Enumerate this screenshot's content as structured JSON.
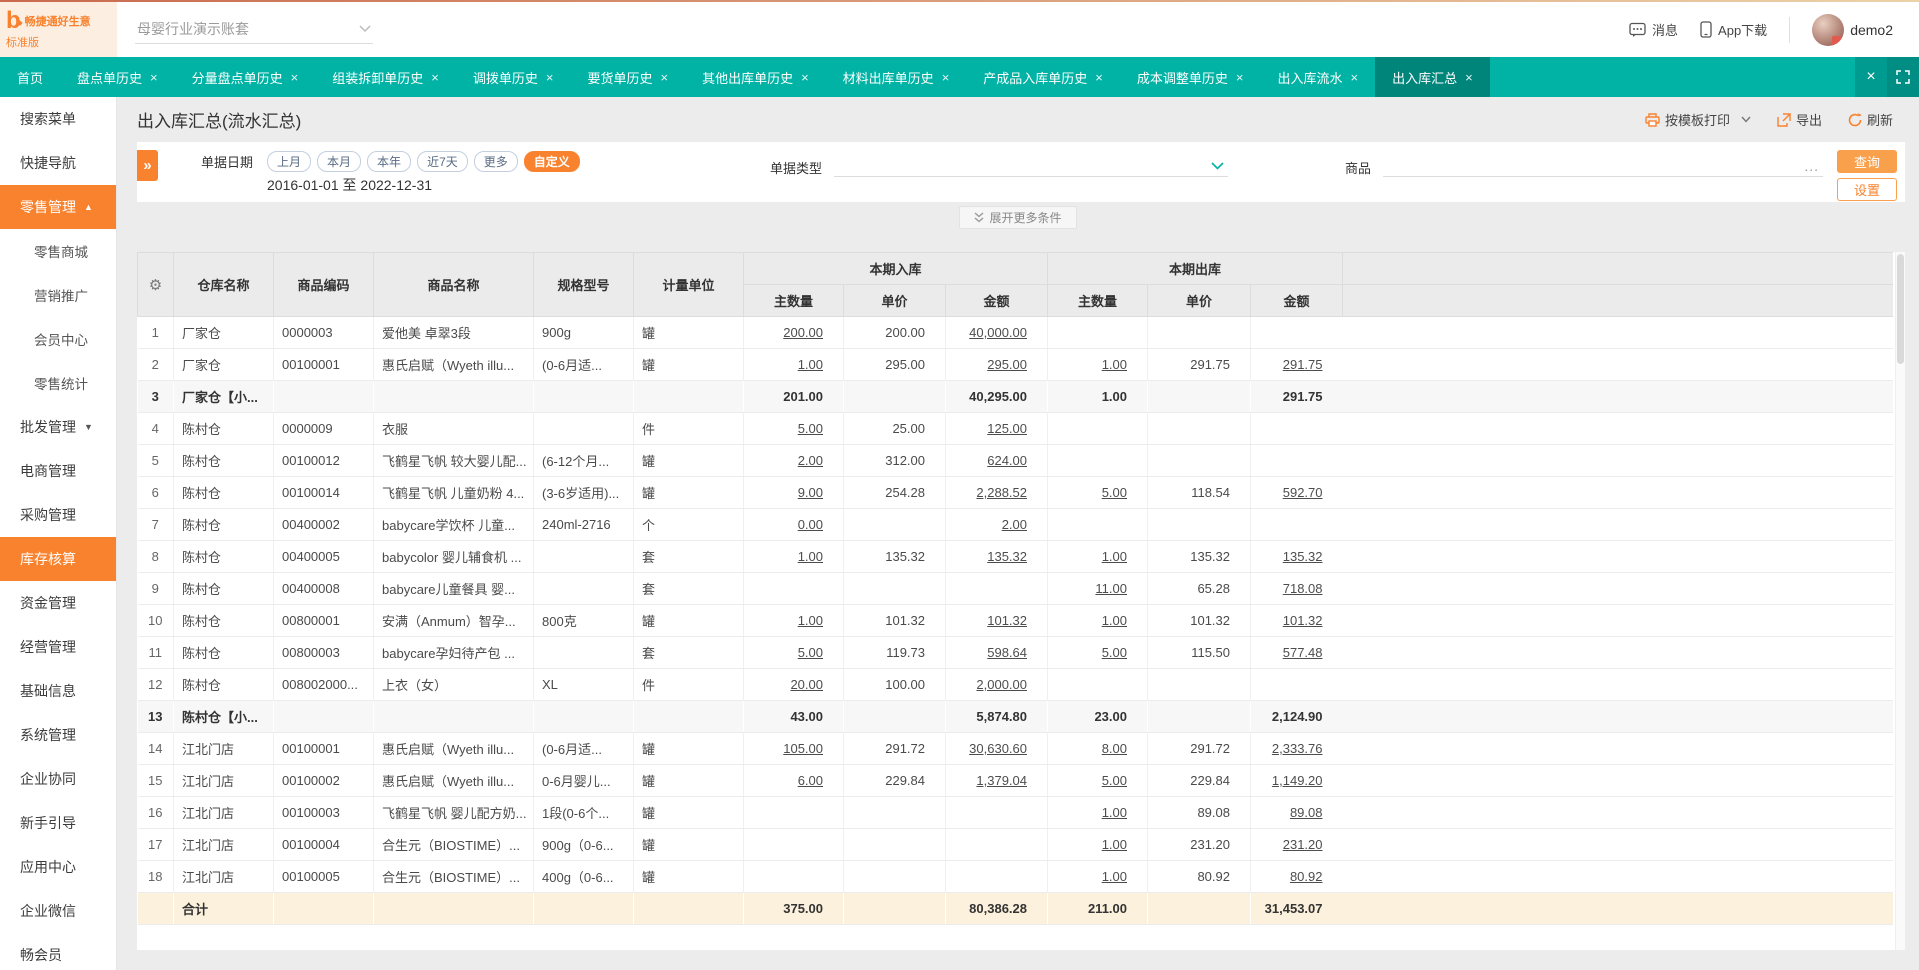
{
  "theme": {
    "teal": "#00b3a4",
    "teal_dark": "#00857b",
    "orange": "#f9822e",
    "total_row_bg": "#fcf1dc"
  },
  "header": {
    "logo_text": "畅捷通好生意",
    "logo_sub": "标准版",
    "account_selector": "母婴行业演示账套",
    "messages_label": "消息",
    "app_download_label": "App下载",
    "username": "demo2"
  },
  "tabs": {
    "items": [
      {
        "label": "首页",
        "closable": false
      },
      {
        "label": "盘点单历史",
        "closable": true
      },
      {
        "label": "分量盘点单历史",
        "closable": true
      },
      {
        "label": "组装拆卸单历史",
        "closable": true
      },
      {
        "label": "调拨单历史",
        "closable": true
      },
      {
        "label": "要货单历史",
        "closable": true
      },
      {
        "label": "其他出库单历史",
        "closable": true
      },
      {
        "label": "材料出库单历史",
        "closable": true
      },
      {
        "label": "产成品入库单历史",
        "closable": true
      },
      {
        "label": "成本调整单历史",
        "closable": true
      },
      {
        "label": "出入库流水",
        "closable": true
      },
      {
        "label": "出入库汇总",
        "closable": true,
        "active": true
      }
    ]
  },
  "sidebar": {
    "items": [
      {
        "label": "搜索菜单"
      },
      {
        "label": "快捷导航"
      },
      {
        "label": "零售管理",
        "active": true,
        "arrow": "up"
      },
      {
        "label": "零售商城",
        "sub": true
      },
      {
        "label": "营销推广",
        "sub": true
      },
      {
        "label": "会员中心",
        "sub": true
      },
      {
        "label": "零售统计",
        "sub": true
      },
      {
        "label": "批发管理",
        "arrow": "down"
      },
      {
        "label": "电商管理"
      },
      {
        "label": "采购管理"
      },
      {
        "label": "库存核算",
        "active": true
      },
      {
        "label": "资金管理"
      },
      {
        "label": "经营管理"
      },
      {
        "label": "基础信息"
      },
      {
        "label": "系统管理"
      },
      {
        "label": "企业协同"
      },
      {
        "label": "新手引导"
      },
      {
        "label": "应用中心"
      },
      {
        "label": "企业微信"
      },
      {
        "label": "畅会员"
      }
    ]
  },
  "page": {
    "title": "出入库汇总(流水汇总)",
    "toolbar": {
      "print": "按模板打印",
      "export": "导出",
      "refresh": "刷新"
    }
  },
  "filters": {
    "date_label": "单据日期",
    "date_pills": [
      "上月",
      "本月",
      "本年",
      "近7天",
      "更多"
    ],
    "custom_pill": "自定义",
    "date_range": "2016-01-01 至 2022-12-31",
    "type_label": "单据类型",
    "product_label": "商品",
    "product_more": "...",
    "query_button": "查询",
    "settings_button": "设置",
    "expand_more": "展开更多条件"
  },
  "table": {
    "columns": [
      "仓库名称",
      "商品编码",
      "商品名称",
      "规格型号",
      "计量单位"
    ],
    "group_in": "本期入库",
    "group_out": "本期出库",
    "sub_columns": [
      "主数量",
      "单价",
      "金额"
    ],
    "rows": [
      {
        "type": "data",
        "num": "1",
        "warehouse": "厂家仓",
        "code": "0000003",
        "name": "爱他美 卓翠3段",
        "spec": "900g",
        "unit": "罐",
        "in_qty": "200.00",
        "in_price": "200.00",
        "in_amt": "40,000.00",
        "out_qty": "",
        "out_price": "",
        "out_amt": ""
      },
      {
        "type": "data",
        "num": "2",
        "warehouse": "厂家仓",
        "code": "00100001",
        "name": "惠氏启赋（Wyeth illu...",
        "spec": "(0-6月适...",
        "unit": "罐",
        "in_qty": "1.00",
        "in_price": "295.00",
        "in_amt": "295.00",
        "out_qty": "1.00",
        "out_price": "291.75",
        "out_amt": "291.75"
      },
      {
        "type": "subtotal",
        "num": "3",
        "warehouse": "厂家仓【小...",
        "code": "",
        "name": "",
        "spec": "",
        "unit": "",
        "in_qty": "201.00",
        "in_price": "",
        "in_amt": "40,295.00",
        "out_qty": "1.00",
        "out_price": "",
        "out_amt": "291.75"
      },
      {
        "type": "data",
        "num": "4",
        "warehouse": "陈村仓",
        "code": "0000009",
        "name": "衣服",
        "spec": "",
        "unit": "件",
        "in_qty": "5.00",
        "in_price": "25.00",
        "in_amt": "125.00",
        "out_qty": "",
        "out_price": "",
        "out_amt": ""
      },
      {
        "type": "data",
        "num": "5",
        "warehouse": "陈村仓",
        "code": "00100012",
        "name": "飞鹤星飞帆 较大婴儿配...",
        "spec": "(6-12个月...",
        "unit": "罐",
        "in_qty": "2.00",
        "in_price": "312.00",
        "in_amt": "624.00",
        "out_qty": "",
        "out_price": "",
        "out_amt": ""
      },
      {
        "type": "data",
        "num": "6",
        "warehouse": "陈村仓",
        "code": "00100014",
        "name": "飞鹤星飞帆 儿童奶粉 4...",
        "spec": "(3-6岁适用)...",
        "unit": "罐",
        "in_qty": "9.00",
        "in_price": "254.28",
        "in_amt": "2,288.52",
        "out_qty": "5.00",
        "out_price": "118.54",
        "out_amt": "592.70"
      },
      {
        "type": "data",
        "num": "7",
        "warehouse": "陈村仓",
        "code": "00400002",
        "name": "babycare学饮杯 儿童...",
        "spec": "240ml-2716",
        "unit": "个",
        "in_qty": "0.00",
        "in_price": "",
        "in_amt": "2.00",
        "out_qty": "",
        "out_price": "",
        "out_amt": ""
      },
      {
        "type": "data",
        "num": "8",
        "warehouse": "陈村仓",
        "code": "00400005",
        "name": "babycolor 婴儿辅食机 ...",
        "spec": "",
        "unit": "套",
        "in_qty": "1.00",
        "in_price": "135.32",
        "in_amt": "135.32",
        "out_qty": "1.00",
        "out_price": "135.32",
        "out_amt": "135.32"
      },
      {
        "type": "data",
        "num": "9",
        "warehouse": "陈村仓",
        "code": "00400008",
        "name": "babycare儿童餐具 婴...",
        "spec": "",
        "unit": "套",
        "in_qty": "",
        "in_price": "",
        "in_amt": "",
        "out_qty": "11.00",
        "out_price": "65.28",
        "out_amt": "718.08"
      },
      {
        "type": "data",
        "num": "10",
        "warehouse": "陈村仓",
        "code": "00800001",
        "name": "安满（Anmum）智孕...",
        "spec": "800克",
        "unit": "罐",
        "in_qty": "1.00",
        "in_price": "101.32",
        "in_amt": "101.32",
        "out_qty": "1.00",
        "out_price": "101.32",
        "out_amt": "101.32"
      },
      {
        "type": "data",
        "num": "11",
        "warehouse": "陈村仓",
        "code": "00800003",
        "name": "babycare孕妇待产包 ...",
        "spec": "",
        "unit": "套",
        "in_qty": "5.00",
        "in_price": "119.73",
        "in_amt": "598.64",
        "out_qty": "5.00",
        "out_price": "115.50",
        "out_amt": "577.48"
      },
      {
        "type": "data",
        "num": "12",
        "warehouse": "陈村仓",
        "code": "008002000...",
        "name": "上衣（女）",
        "spec": "XL",
        "unit": "件",
        "in_qty": "20.00",
        "in_price": "100.00",
        "in_amt": "2,000.00",
        "out_qty": "",
        "out_price": "",
        "out_amt": ""
      },
      {
        "type": "subtotal",
        "num": "13",
        "warehouse": "陈村仓【小...",
        "code": "",
        "name": "",
        "spec": "",
        "unit": "",
        "in_qty": "43.00",
        "in_price": "",
        "in_amt": "5,874.80",
        "out_qty": "23.00",
        "out_price": "",
        "out_amt": "2,124.90"
      },
      {
        "type": "data",
        "num": "14",
        "warehouse": "江北门店",
        "code": "00100001",
        "name": "惠氏启赋（Wyeth illu...",
        "spec": "(0-6月适...",
        "unit": "罐",
        "in_qty": "105.00",
        "in_price": "291.72",
        "in_amt": "30,630.60",
        "out_qty": "8.00",
        "out_price": "291.72",
        "out_amt": "2,333.76"
      },
      {
        "type": "data",
        "num": "15",
        "warehouse": "江北门店",
        "code": "00100002",
        "name": "惠氏启赋（Wyeth illu...",
        "spec": "0-6月婴儿...",
        "unit": "罐",
        "in_qty": "6.00",
        "in_price": "229.84",
        "in_amt": "1,379.04",
        "out_qty": "5.00",
        "out_price": "229.84",
        "out_amt": "1,149.20"
      },
      {
        "type": "data",
        "num": "16",
        "warehouse": "江北门店",
        "code": "00100003",
        "name": "飞鹤星飞帆 婴儿配方奶...",
        "spec": "1段(0-6个...",
        "unit": "罐",
        "in_qty": "",
        "in_price": "",
        "in_amt": "",
        "out_qty": "1.00",
        "out_price": "89.08",
        "out_amt": "89.08"
      },
      {
        "type": "data",
        "num": "17",
        "warehouse": "江北门店",
        "code": "00100004",
        "name": "合生元（BIOSTIME）...",
        "spec": "900g（0-6...",
        "unit": "罐",
        "in_qty": "",
        "in_price": "",
        "in_amt": "",
        "out_qty": "1.00",
        "out_price": "231.20",
        "out_amt": "231.20"
      },
      {
        "type": "data",
        "num": "18",
        "warehouse": "江北门店",
        "code": "00100005",
        "name": "合生元（BIOSTIME）...",
        "spec": "400g（0-6...",
        "unit": "罐",
        "in_qty": "",
        "in_price": "",
        "in_amt": "",
        "out_qty": "1.00",
        "out_price": "80.92",
        "out_amt": "80.92"
      },
      {
        "type": "total",
        "num": "",
        "warehouse": "合计",
        "code": "",
        "name": "",
        "spec": "",
        "unit": "",
        "in_qty": "375.00",
        "in_price": "",
        "in_amt": "80,386.28",
        "out_qty": "211.00",
        "out_price": "",
        "out_amt": "31,453.07"
      }
    ]
  }
}
